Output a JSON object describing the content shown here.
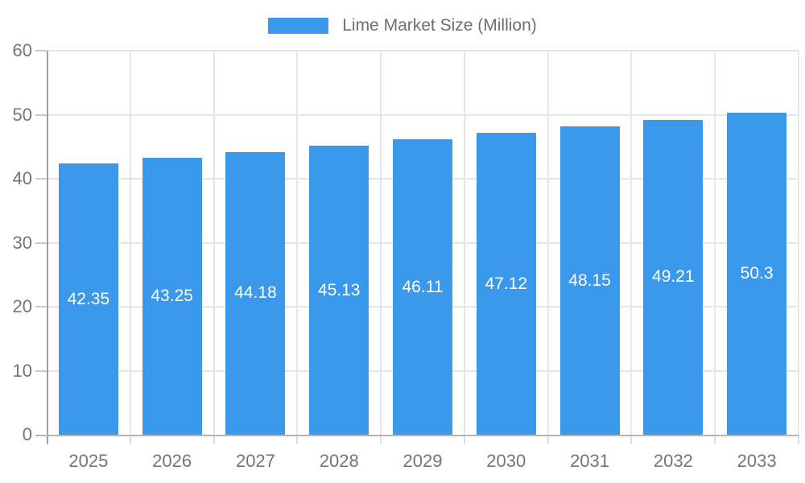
{
  "legend": {
    "label": "Lime Market Size (Million)"
  },
  "chart_data": {
    "type": "bar",
    "title": "Lime Market Size (Million)",
    "categories": [
      "2025",
      "2026",
      "2027",
      "2028",
      "2029",
      "2030",
      "2031",
      "2032",
      "2033"
    ],
    "values": [
      42.35,
      43.25,
      44.18,
      45.13,
      46.11,
      47.12,
      48.15,
      49.21,
      50.3
    ],
    "value_labels": [
      "42.35",
      "43.25",
      "44.18",
      "45.13",
      "46.11",
      "47.12",
      "48.15",
      "49.21",
      "50.3"
    ],
    "xlabel": "",
    "ylabel": "",
    "ylim": [
      0,
      60
    ],
    "yticks": [
      0,
      10,
      20,
      30,
      40,
      50,
      60
    ],
    "grid": true,
    "legend_position": "top",
    "bar_label_position": "inside-center"
  },
  "colors": {
    "background": "#ffffff",
    "bar": "#3b99ec",
    "gridline": "#e6e6e6",
    "y_axis_line": "#a0a0a0",
    "x_axis_line": "#b5b5b5",
    "y_tick": "#c9c9c9",
    "x_tick": "#dcdcdc",
    "axis_label_text": "#757575",
    "legend_text": "#6e6e6e",
    "value_label_text": "#ffffff"
  }
}
